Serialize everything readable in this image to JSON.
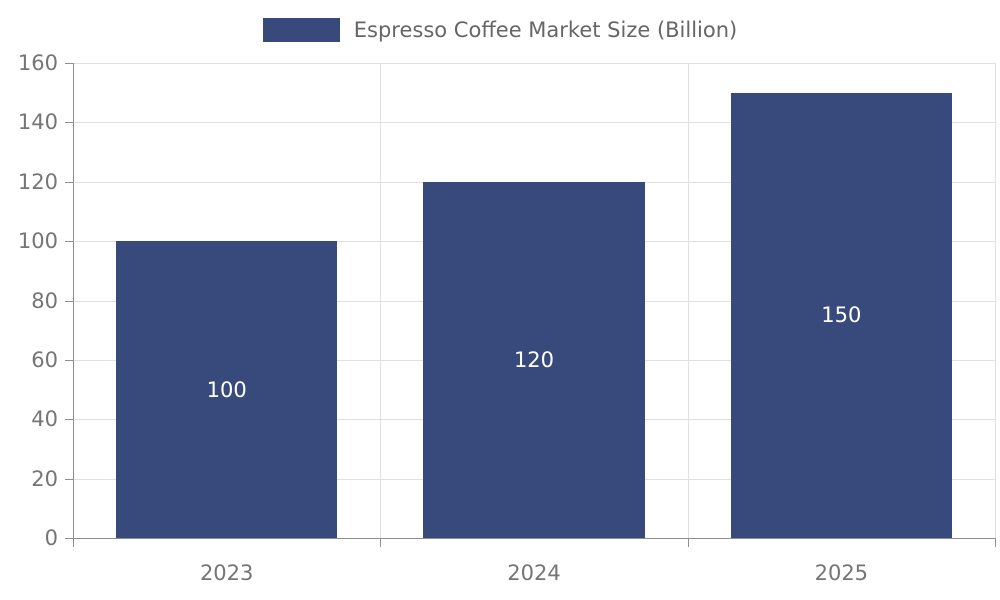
{
  "chart_data": {
    "type": "bar",
    "title": "Espresso Coffee Market Size (Billion)",
    "categories": [
      "2023",
      "2024",
      "2025"
    ],
    "values": [
      100,
      120,
      150
    ],
    "data_labels": [
      "100",
      "120",
      "150"
    ],
    "xlabel": "",
    "ylabel": "",
    "ylim": [
      0,
      160
    ],
    "yticks": [
      0,
      20,
      40,
      60,
      80,
      100,
      120,
      140,
      160
    ],
    "grid": true,
    "legend_position": "top-center",
    "bar_width_fraction": 0.72,
    "colors": {
      "bar": "#384a7c",
      "bar_label": "#ffffff",
      "axis_text": "#757575",
      "legend_text": "#666666",
      "gridline": "#e0e0e0",
      "axis_line": "#8f8f8f",
      "background": "#ffffff"
    }
  }
}
